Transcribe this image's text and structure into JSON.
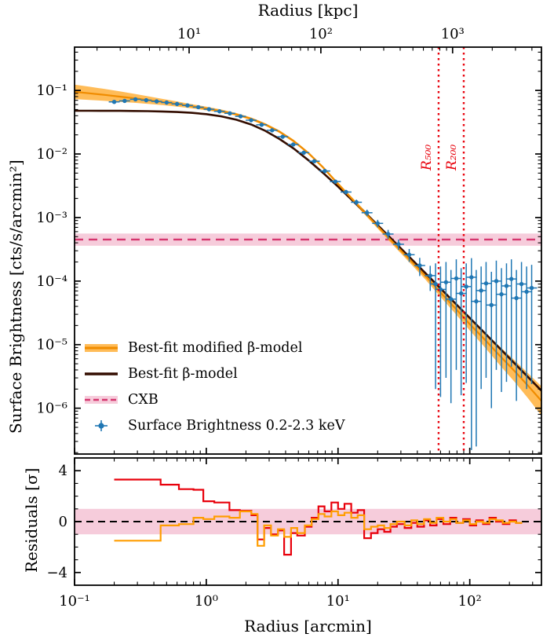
{
  "figure": {
    "axes": {
      "top_xlabel": "Radius [kpc]",
      "bottom_xlabel": "Radius [arcmin]",
      "main_ylabel": "Surface Brightness [cts/s/arcmin²]",
      "resid_ylabel": "Residuals [σ]",
      "main_yticks": {
        "values": [
          0.1,
          0.01,
          0.001,
          0.0001,
          1e-05,
          1e-06
        ],
        "labels": [
          "10⁻¹",
          "10⁻²",
          "10⁻³",
          "10⁻⁴",
          "10⁻⁵",
          "10⁻⁶"
        ]
      },
      "bottom_xticks": {
        "values": [
          0.1,
          1,
          10,
          100
        ],
        "labels": [
          "10⁻¹",
          "10⁰",
          "10¹",
          "10²"
        ]
      },
      "top_xticks": {
        "values_kpc": [
          10,
          100,
          1000
        ],
        "labels": [
          "10¹",
          "10²",
          "10³"
        ]
      },
      "resid_yticks": {
        "values": [
          4,
          0,
          -4
        ],
        "labels": [
          "4",
          "0",
          "−4"
        ]
      }
    },
    "colors": {
      "data_blue": "#1f77b4",
      "modified_band": "#ffa620",
      "modified_band_opacity": 0.75,
      "modified_line": "#f08c00",
      "beta_line": "#330d00",
      "cxb_line": "#d5366e",
      "cxb_band_fill": "#de497d",
      "cxb_band_opacity": 0.28,
      "r_line": "#e8000b",
      "res_red": "#e8000b",
      "res_orange": "#ff9d00",
      "zero_dash": "#000000",
      "spine": "#000000"
    },
    "legend": {
      "items": [
        {
          "label": "Best-fit modified β-model"
        },
        {
          "label": "Best-fit β-model"
        },
        {
          "label": "CXB"
        },
        {
          "label": "Surface Brightness 0.2-2.3 keV"
        }
      ]
    },
    "annotations": {
      "r500": {
        "label": "R₅₀₀",
        "arcmin": 58
      },
      "r200": {
        "label": "R₂₀₀",
        "arcmin": 90
      }
    }
  },
  "chart_data": [
    {
      "type": "line",
      "panel": "main",
      "xlabel": "Radius [arcmin]",
      "xlabel_top": "Radius [kpc]",
      "ylabel": "Surface Brightness [cts/s/arcmin²]",
      "xscale": "log",
      "yscale": "log",
      "xlim": [
        0.1,
        350
      ],
      "ylim": [
        1.9e-07,
        0.48
      ],
      "kpc_per_arcmin": 13.5,
      "grid": false,
      "legend_position": "lower left",
      "cxb": {
        "level": 0.00045,
        "band": [
          0.00036,
          0.00056
        ]
      },
      "beta_model": {
        "name": "Best-fit β-model",
        "x": [
          0.1,
          0.13,
          0.17,
          0.22,
          0.28,
          0.36,
          0.46,
          0.6,
          0.77,
          1.0,
          1.3,
          1.7,
          2.2,
          2.8,
          3.6,
          4.6,
          6.0,
          7.7,
          10,
          13,
          17,
          22,
          28,
          36,
          46,
          60,
          77,
          100,
          130,
          170,
          220,
          280,
          350
        ],
        "y": [
          0.0479,
          0.0479,
          0.0478,
          0.0477,
          0.0475,
          0.0472,
          0.0467,
          0.0458,
          0.0445,
          0.0423,
          0.0391,
          0.0345,
          0.029,
          0.0232,
          0.0172,
          0.0122,
          0.00788,
          0.00504,
          0.00306,
          0.00182,
          0.00106,
          0.000622,
          0.000378,
          0.000223,
          0.000134,
          7.67e-05,
          4.55e-05,
          2.63e-05,
          1.52e-05,
          8.63e-06,
          5.03e-06,
          3.02e-06,
          1.89e-06
        ]
      },
      "modified_beta_model": {
        "name": "Best-fit modified β-model",
        "x": [
          0.1,
          0.13,
          0.17,
          0.22,
          0.28,
          0.36,
          0.46,
          0.6,
          0.77,
          1.0,
          1.3,
          1.7,
          2.2,
          2.8,
          3.6,
          4.6,
          6.0,
          7.7,
          10,
          13,
          17,
          22,
          28,
          36,
          46,
          60,
          77,
          100,
          130,
          170,
          220,
          280,
          350
        ],
        "y": [
          0.095,
          0.09,
          0.085,
          0.08,
          0.0755,
          0.0705,
          0.066,
          0.061,
          0.0565,
          0.052,
          0.0473,
          0.0419,
          0.0357,
          0.0292,
          0.0224,
          0.016,
          0.0102,
          0.00615,
          0.00338,
          0.00188,
          0.00104,
          0.00059,
          0.00035,
          0.000205,
          0.000121,
          6.6e-05,
          3.8e-05,
          2.1e-05,
          1.2e-05,
          6.6e-06,
          3.8e-06,
          2.2e-06,
          1.3e-06
        ],
        "band_factor": [
          1.3,
          1.27,
          1.24,
          1.21,
          1.18,
          1.15,
          1.12,
          1.1,
          1.08,
          1.07,
          1.06,
          1.05,
          1.05,
          1.05,
          1.05,
          1.05,
          1.05,
          1.05,
          1.06,
          1.07,
          1.08,
          1.09,
          1.1,
          1.12,
          1.14,
          1.17,
          1.21,
          1.26,
          1.32,
          1.4,
          1.48,
          1.58,
          1.7
        ]
      },
      "sb_data": {
        "name": "Surface Brightness 0.2-2.3 keV",
        "xerr_factor": 1.1,
        "points": [
          [
            0.2,
            0.066,
            0.0614,
            0.0706
          ],
          [
            0.24,
            0.0685,
            0.0637,
            0.0733
          ],
          [
            0.29,
            0.0725,
            0.0674,
            0.0776
          ],
          [
            0.35,
            0.0702,
            0.0653,
            0.0751
          ],
          [
            0.42,
            0.0672,
            0.0625,
            0.0719
          ],
          [
            0.5,
            0.0645,
            0.06,
            0.069
          ],
          [
            0.6,
            0.0612,
            0.0569,
            0.0655
          ],
          [
            0.72,
            0.0581,
            0.054,
            0.0622
          ],
          [
            0.87,
            0.0545,
            0.0507,
            0.0583
          ],
          [
            1.05,
            0.0506,
            0.0471,
            0.0541
          ],
          [
            1.26,
            0.0469,
            0.0436,
            0.0502
          ],
          [
            1.51,
            0.0436,
            0.0405,
            0.0467
          ],
          [
            1.82,
            0.0391,
            0.0364,
            0.0418
          ],
          [
            2.19,
            0.034,
            0.0316,
            0.0364
          ],
          [
            2.63,
            0.0288,
            0.0268,
            0.0308
          ],
          [
            3.16,
            0.0236,
            0.0219,
            0.0253
          ],
          [
            3.8,
            0.0187,
            0.0174,
            0.02
          ],
          [
            4.57,
            0.0141,
            0.0131,
            0.0151
          ],
          [
            5.5,
            0.0105,
            0.0098,
            0.0112
          ],
          [
            6.61,
            0.0077,
            0.0072,
            0.0082
          ],
          [
            7.94,
            0.0054,
            0.005,
            0.0058
          ],
          [
            9.55,
            0.00368,
            0.00342,
            0.00394
          ],
          [
            11.5,
            0.00252,
            0.00232,
            0.00272
          ],
          [
            13.8,
            0.00174,
            0.00157,
            0.00191
          ],
          [
            16.6,
            0.00119,
            0.00105,
            0.00133
          ],
          [
            20.0,
            0.00081,
            0.0007,
            0.00092
          ],
          [
            24.0,
            0.00055,
            0.00046,
            0.00064
          ],
          [
            28.8,
            0.00038,
            0.00031,
            0.00045
          ],
          [
            34.7,
            0.00026,
            0.0002,
            0.00032
          ],
          [
            41.7,
            0.000176,
            0.00012,
            0.000232
          ],
          [
            50.1,
            0.000122,
            7e-05,
            0.000174
          ],
          [
            55,
            9e-05,
            2e-06,
            0.00019
          ],
          [
            60,
            7.4e-05,
            1.5e-06,
            0.00017
          ],
          [
            66,
            9.6e-05,
            3e-06,
            0.0002
          ],
          [
            72,
            5.2e-05,
            1.2e-06,
            0.00015
          ],
          [
            79,
            0.00011,
            4e-06,
            0.00022
          ],
          [
            86,
            6.4e-05,
            1.6e-06,
            0.00016
          ],
          [
            94,
            8.2e-05,
            2.5e-06,
            0.00019
          ],
          [
            103,
            0.000115,
            2.2e-07,
            0.00023
          ],
          [
            112,
            4.8e-05,
            2.5e-07,
            0.00015
          ],
          [
            122,
            7.1e-05,
            2e-06,
            0.00017
          ],
          [
            133,
            9.2e-05,
            3e-06,
            0.0002
          ],
          [
            146,
            4.2e-05,
            1e-06,
            0.00014
          ],
          [
            159,
            0.0001,
            4e-06,
            0.00021
          ],
          [
            174,
            6.2e-05,
            1.8e-06,
            0.00016
          ],
          [
            190,
            8.4e-05,
            2.6e-06,
            0.00019
          ],
          [
            207,
            0.000108,
            4.5e-06,
            0.00022
          ],
          [
            226,
            5.4e-05,
            1.3e-06,
            0.00015
          ],
          [
            247,
            9e-05,
            3e-06,
            0.0002
          ],
          [
            270,
            6.8e-05,
            2e-06,
            0.00017
          ],
          [
            295,
            7.8e-05,
            2.4e-06,
            0.00018
          ]
        ]
      }
    },
    {
      "type": "step",
      "panel": "residuals",
      "ylabel": "Residuals [σ]",
      "ylim": [
        -5,
        5
      ],
      "band_sigma": [
        -1,
        1
      ],
      "zero_line": 0,
      "edges": [
        0.2,
        0.45,
        0.62,
        0.8,
        0.95,
        1.15,
        1.5,
        1.8,
        2.2,
        2.45,
        2.75,
        3.1,
        3.5,
        3.9,
        4.4,
        4.9,
        5.6,
        6.3,
        7.1,
        7.9,
        8.9,
        10,
        11.2,
        12.6,
        14.1,
        15.8,
        17.8,
        20,
        22.4,
        25,
        28,
        32,
        36,
        40,
        45,
        50,
        56,
        63,
        71,
        79,
        89,
        100,
        112,
        126,
        141,
        158,
        178,
        200,
        224,
        250
      ],
      "series": [
        {
          "name": "β-model residuals",
          "key": "beta-residuals-line",
          "color_key": "res_red",
          "values": [
            3.3,
            2.9,
            2.55,
            2.5,
            1.6,
            1.5,
            0.9,
            0.85,
            0.5,
            -1.4,
            -0.5,
            -1.0,
            -0.7,
            -2.6,
            -0.9,
            -1.1,
            -0.4,
            0.3,
            1.2,
            0.8,
            1.5,
            1.0,
            1.4,
            0.7,
            0.9,
            -1.3,
            -0.9,
            -0.6,
            -0.8,
            -0.4,
            -0.2,
            -0.5,
            -0.1,
            -0.4,
            0.1,
            -0.3,
            0.2,
            -0.2,
            0.3,
            -0.1,
            0.2,
            -0.3,
            0.1,
            -0.2,
            0.3,
            0.0,
            -0.2,
            0.1,
            -0.1
          ]
        },
        {
          "name": "modified β-model residuals",
          "key": "modified-beta-residuals-line",
          "color_key": "res_orange",
          "values": [
            -1.5,
            -0.3,
            -0.2,
            0.3,
            0.2,
            0.4,
            0.3,
            0.8,
            0.6,
            -1.9,
            -0.3,
            -1.1,
            -0.6,
            -1.2,
            -0.5,
            -0.9,
            -0.3,
            0.2,
            0.6,
            0.4,
            0.8,
            0.5,
            0.7,
            0.3,
            0.5,
            -0.6,
            -0.4,
            -0.3,
            -0.5,
            -0.2,
            0.0,
            -0.3,
            0.1,
            -0.2,
            0.2,
            -0.1,
            0.3,
            0.0,
            0.2,
            -0.1,
            0.1,
            -0.2,
            0.0,
            -0.1,
            0.2,
            0.1,
            -0.1,
            0.0,
            -0.1
          ]
        }
      ]
    }
  ]
}
